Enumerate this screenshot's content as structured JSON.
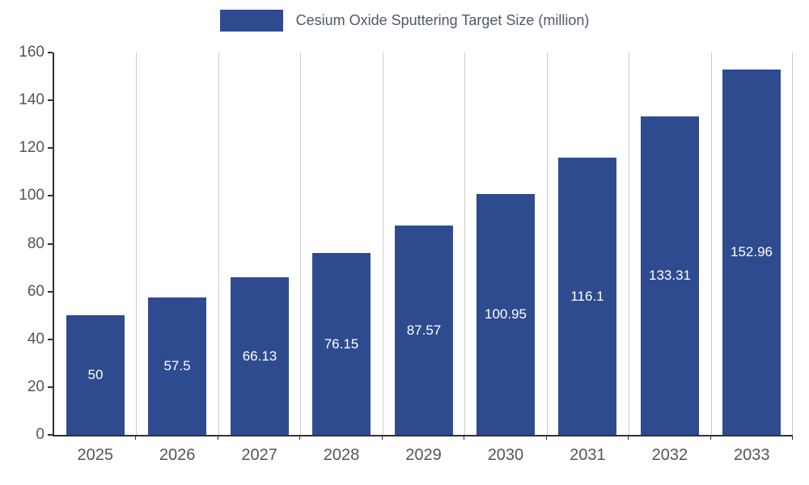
{
  "chart_data": {
    "type": "bar",
    "title": "Cesium Oxide Sputtering Target Size (million)",
    "categories": [
      "2025",
      "2026",
      "2027",
      "2028",
      "2029",
      "2030",
      "2031",
      "2032",
      "2033"
    ],
    "values": [
      50,
      57.5,
      66.13,
      76.15,
      87.57,
      100.95,
      116.1,
      133.31,
      152.96
    ],
    "value_labels": [
      "50",
      "57.5",
      "66.13",
      "76.15",
      "87.57",
      "100.95",
      "116.1",
      "133.31",
      "152.96"
    ],
    "xlabel": "",
    "ylabel": "",
    "ylim": [
      0,
      160
    ],
    "ytick_step": 20,
    "yticks": [
      "0",
      "20",
      "40",
      "60",
      "80",
      "100",
      "120",
      "140",
      "160"
    ],
    "legend_position": "top-center",
    "grid": "vertical-only",
    "bar_color": "#2f4b8f",
    "bar_label_color": "#ffffff",
    "axis_text_color": "#555555",
    "legend_text_color": "#4e5a68"
  }
}
